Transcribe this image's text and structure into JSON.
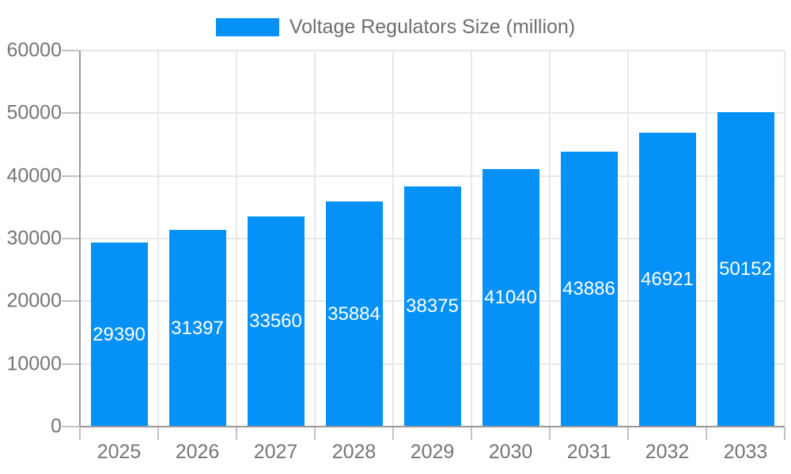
{
  "chart_data": {
    "type": "bar",
    "title": "Voltage Regulators Size (million)",
    "series_name": "Voltage Regulators Size (million)",
    "categories": [
      "2025",
      "2026",
      "2027",
      "2028",
      "2029",
      "2030",
      "2031",
      "2032",
      "2033"
    ],
    "values": [
      29390,
      31397,
      33560,
      35884,
      38375,
      41040,
      43886,
      46921,
      50152
    ],
    "value_labels": [
      "29390",
      "31397",
      "33560",
      "35884",
      "38375",
      "41040",
      "43886",
      "46921",
      "50152"
    ],
    "value_label_position": "inside-center",
    "xlabel": "",
    "ylabel": "",
    "ylim": [
      0,
      60000
    ],
    "ytick_step": 10000,
    "yticks": [
      "0",
      "10000",
      "20000",
      "30000",
      "40000",
      "50000",
      "60000"
    ],
    "grid": true,
    "legend_position": "top-center",
    "colors": {
      "bar": "#0591f8",
      "grid": "#e8e8e8",
      "axis": "#999999",
      "tick": "#c2c2c2",
      "tick_label": "#757575",
      "title": "#6e6e6e",
      "value_label": "#ffffff",
      "background": "#ffffff"
    }
  }
}
